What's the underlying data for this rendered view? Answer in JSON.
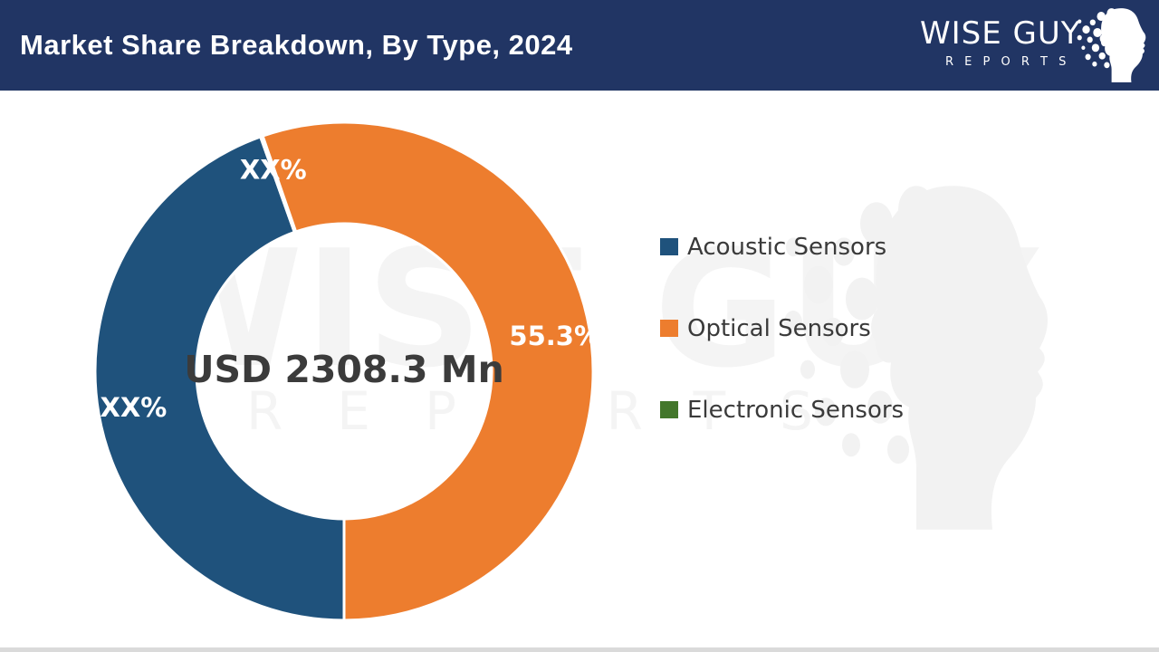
{
  "header": {
    "title": "Market Share Breakdown, By Type, 2024",
    "bg_color": "#213564",
    "logo": {
      "line1": "WISE GUY",
      "line2": "R E P O R T S"
    }
  },
  "watermark": {
    "line1": "WISE GUY",
    "line2": "REPORTS"
  },
  "chart_data": {
    "type": "pie",
    "subtype": "donut",
    "title": "Market Share Breakdown, By Type, 2024",
    "center_label": "USD 2308.3 Mn",
    "legend_position": "right",
    "start_angle_deg": 270,
    "direction": "clockwise",
    "draw_order": [
      0,
      2,
      1
    ],
    "series": [
      {
        "name": "Acoustic Sensors",
        "label": "XX%",
        "value_pct": 44.55,
        "color": "#1F527C"
      },
      {
        "name": "Optical Sensors",
        "label": "55.3%",
        "value_pct": 55.3,
        "color": "#ED7D2E"
      },
      {
        "name": "Electronic Sensors",
        "label": "XX%",
        "value_pct": 0.15,
        "color": "#43772B"
      }
    ]
  },
  "footer": {
    "bar_color": "#DADADA"
  }
}
